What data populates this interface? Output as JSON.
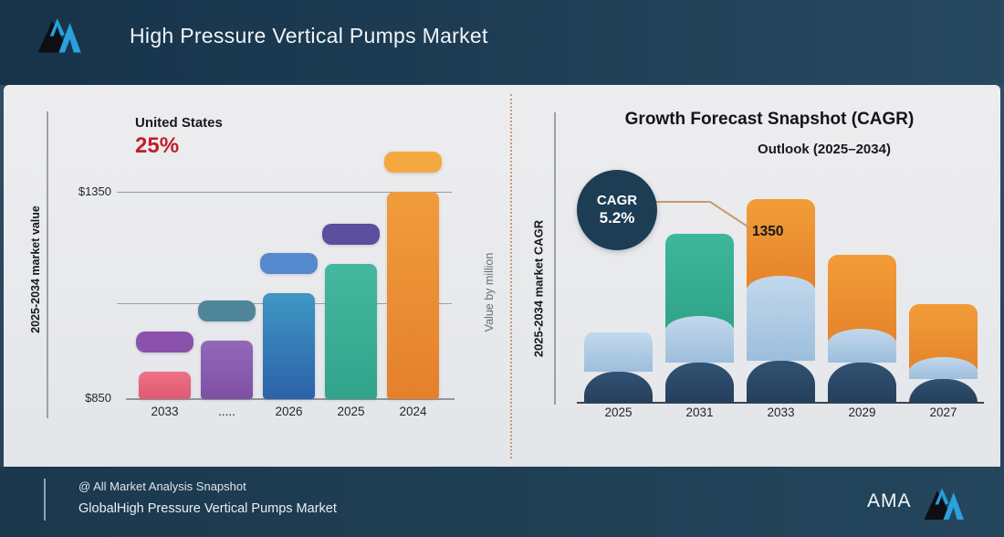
{
  "header": {
    "title": "High Pressure Vertical Pumps Market"
  },
  "left_chart": {
    "region": "United States",
    "highlight": "25%",
    "ylabel": "2025-2034 market value"
  },
  "middle": {
    "left_axis_note": "Value by million",
    "right_axis_note": "2025-2034 market CAGR"
  },
  "right_chart": {
    "title": "Growth Forecast Snapshot (CAGR)",
    "subtitle": "Outlook (2025–2034)",
    "badge_label": "CAGR",
    "badge_value": "5.2%"
  },
  "footer": {
    "note": "@ All Market Analysis Snapshot",
    "source": "GlobalHigh Pressure Vertical Pumps Market",
    "brand": "AMA"
  },
  "colors": {
    "header_navy": "#1d3c53",
    "panel_light": "#e9eaec",
    "accent_red": "#c01e2b",
    "badge_navy": "#1c3d54",
    "callout_line": "#c99a6d",
    "logo_blue": "#2aa0dd",
    "logo_black": "#0d0f12",
    "right_navy_dome": [
      "#315273",
      "#243f5b"
    ],
    "right_light_blue": [
      "#c3d8ec",
      "#9cbedd"
    ],
    "right_teal": [
      "#3eb79b",
      "#2fa488"
    ],
    "right_orange": [
      "#f29d38",
      "#e6832b"
    ]
  },
  "chart_data": [
    {
      "type": "bar",
      "title": "United States 25%",
      "categories": [
        "2033",
        ".....",
        "2026",
        "2025",
        "2024"
      ],
      "values": [
        915,
        990,
        1105,
        1175,
        1350
      ],
      "ylim": [
        850,
        1350
      ],
      "yticks": [
        850,
        1350
      ],
      "yticks_text": [
        "$850",
        "$1350"
      ],
      "ylabel": "2025-2034 market value",
      "grid": true,
      "legend": "none",
      "bar_colors": [
        [
          "#ee7086",
          "#dd5a72"
        ],
        [
          "#9268ba",
          "#7e50a4"
        ],
        [
          "#3f97c4",
          "#2b62aa"
        ],
        [
          "#44b89e",
          "#32a38b"
        ],
        [
          "#f19c3c",
          "#e4802c"
        ]
      ],
      "cap_colors": [
        "#8a52aa",
        "#4e8599",
        "#5589cd",
        "#5b4f9e",
        "#f5a840"
      ],
      "style_note": "each bar has a floating rounded cap above it"
    },
    {
      "type": "stacked-bar",
      "title": "Growth Forecast Snapshot (CAGR)",
      "subtitle": "Outlook (2025–2034)",
      "categories": [
        "2025",
        "2031",
        "2033",
        "2029",
        "2027"
      ],
      "series": [
        {
          "name": "navy-dome-base",
          "values": [
            34,
            44,
            46,
            44,
            26
          ]
        },
        {
          "name": "light-blue-mid",
          "values": [
            43,
            38,
            80,
            24,
            11
          ]
        },
        {
          "name": "colored-top",
          "values": [
            0,
            103,
            97,
            94,
            71
          ],
          "top_color_names": [
            null,
            "teal",
            "orange",
            "orange",
            "orange"
          ]
        }
      ],
      "units": "relative height (no y scale shown)",
      "annotations": [
        {
          "bar": "2033",
          "text": "1350"
        }
      ],
      "ylabel": "2025-2034 market CAGR",
      "cagr_badge": "CAGR 5.2%",
      "legend": "none"
    }
  ]
}
